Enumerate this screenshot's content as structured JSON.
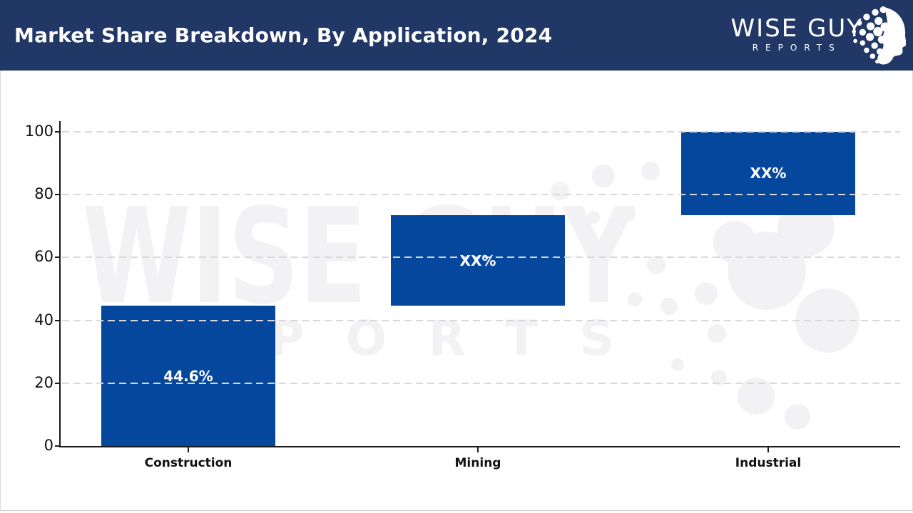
{
  "header": {
    "title": "Market Share Breakdown, By Application, 2024",
    "brand_line1": "WISE GUY",
    "brand_line2": "REPORTS",
    "bg_color": "#213866"
  },
  "watermark": {
    "line1": "WISE GUY",
    "line2": "REPORTS",
    "color": "#f2f2f4"
  },
  "chart_data": {
    "type": "bar",
    "subtype": "waterfall",
    "title": "Market Share Breakdown, By Application, 2024",
    "categories": [
      "Construction",
      "Mining",
      "Industrial"
    ],
    "series": [
      {
        "name": "Market Share",
        "segments": [
          {
            "category": "Construction",
            "start": 0,
            "end": 44.6,
            "label": "44.6%"
          },
          {
            "category": "Mining",
            "start": 44.6,
            "end": 73.5,
            "label": "XX%"
          },
          {
            "category": "Industrial",
            "start": 73.5,
            "end": 100,
            "label": "XX%"
          }
        ]
      }
    ],
    "yticks": [
      0,
      20,
      40,
      60,
      80,
      100
    ],
    "ylim": [
      0,
      103.4
    ],
    "xlabel": "",
    "ylabel": "",
    "grid": true,
    "grid_style": "dashed",
    "legend": "none",
    "bar_color": "#06479e",
    "grid_color": "#d9d9d9",
    "axis_color": "#1a1a1a"
  }
}
